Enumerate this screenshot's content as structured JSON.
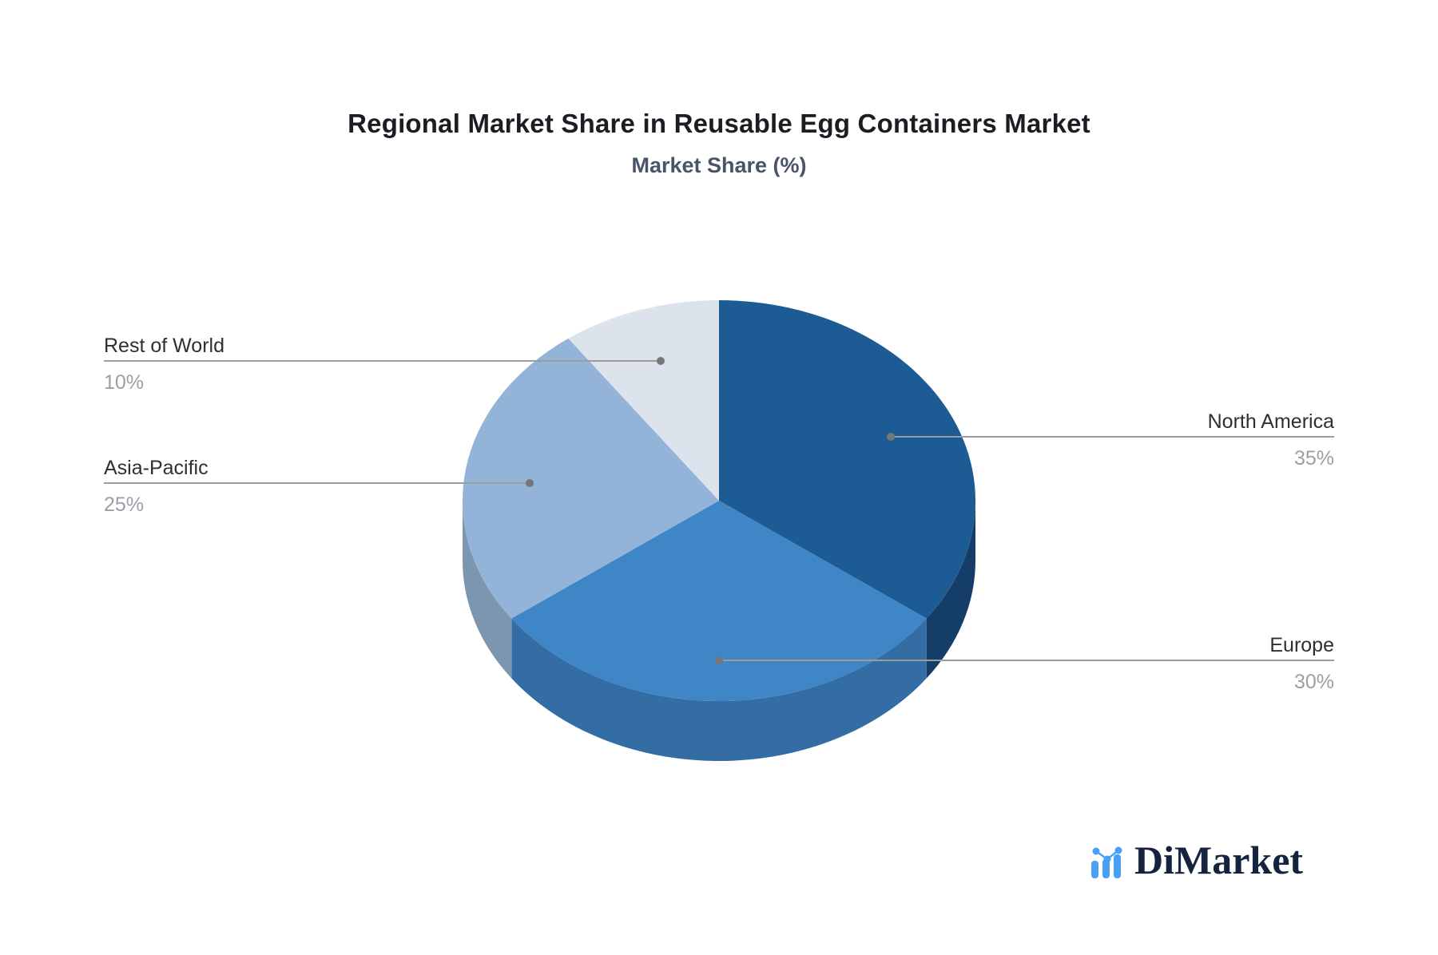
{
  "chart_data": {
    "type": "pie",
    "style": "3d",
    "title": "Regional Market Share in Reusable Egg Containers Market",
    "subtitle": "Market Share (%)",
    "unit": "%",
    "direction": "clockwise",
    "start_angle_deg": 0,
    "categories": [
      "North America",
      "Europe",
      "Asia-Pacific",
      "Rest of World"
    ],
    "values": [
      35,
      30,
      25,
      10
    ],
    "slices": [
      {
        "label": "North America",
        "value": 35,
        "display": "35%",
        "color_top": "#1d5b94",
        "color_side": "#143e67"
      },
      {
        "label": "Europe",
        "value": 30,
        "display": "30%",
        "color_top": "#3e86c6",
        "color_side": "#336da4"
      },
      {
        "label": "Asia-Pacific",
        "value": 25,
        "display": "25%",
        "color_top": "#93b4d8",
        "color_side": "#7d96af"
      },
      {
        "label": "Rest of World",
        "value": 10,
        "display": "10%",
        "color_top": "#dde3ed",
        "color_side": "#c2ccd9"
      }
    ],
    "legend": "none",
    "leader_line_color": "#9c9c9c",
    "leader_dot_color": "#767676",
    "label_color": "#2f2f2f",
    "pct_color": "#9aa0a6"
  },
  "branding": {
    "logo_text": "DiMarket",
    "logo_text_color": "#16233e",
    "logo_bar_color": "#4aa0f4"
  }
}
